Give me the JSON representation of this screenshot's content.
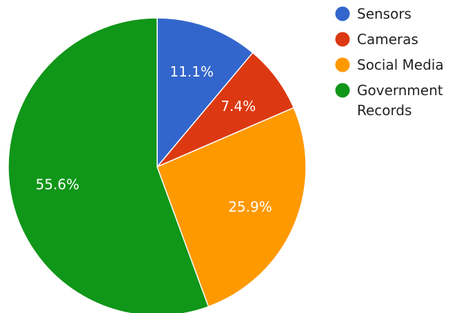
{
  "chart_data": {
    "type": "pie",
    "title": "",
    "legend_position": "top-right",
    "slices": [
      {
        "label": "Sensors",
        "value": 11.1,
        "display": "11.1%",
        "color": "#3366cc"
      },
      {
        "label": "Cameras",
        "value": 7.4,
        "display": "7.4%",
        "color": "#dc3912"
      },
      {
        "label": "Social Media",
        "value": 25.9,
        "display": "25.9%",
        "color": "#ff9900"
      },
      {
        "label": "Government Records",
        "value": 55.6,
        "display": "55.6%",
        "color": "#109618"
      }
    ]
  }
}
